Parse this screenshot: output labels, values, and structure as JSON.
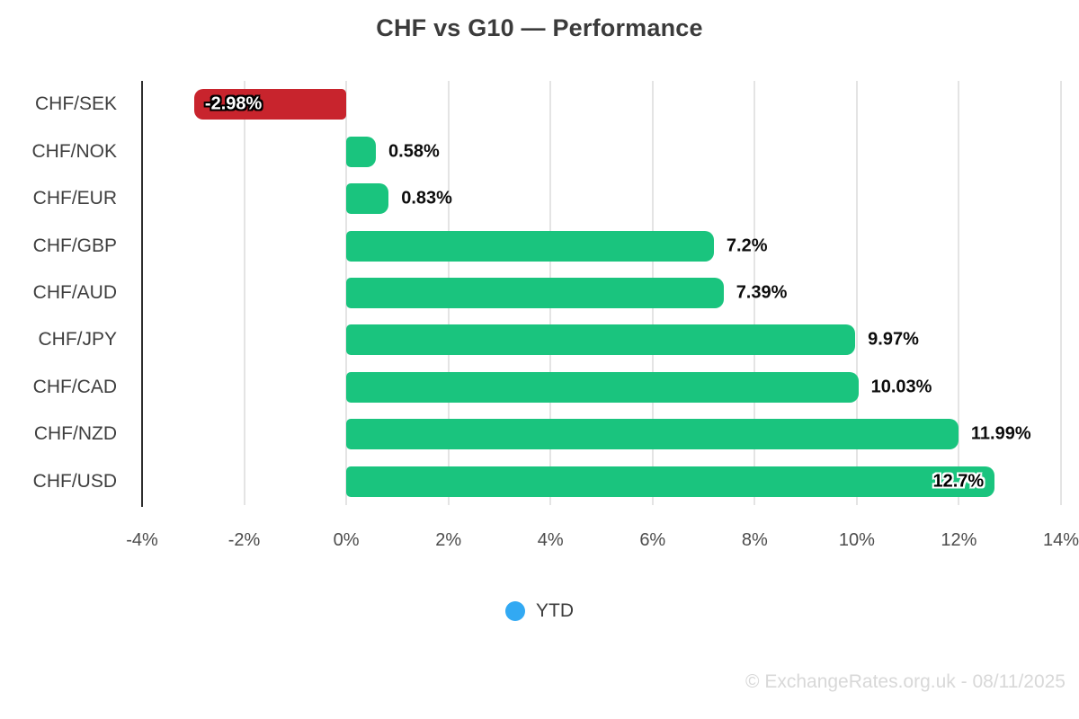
{
  "title": "CHF vs G10 — Performance",
  "legend": {
    "label": "YTD",
    "dot_color": "#32a9f3"
  },
  "watermark": "© ExchangeRates.org.uk - 08/11/2025",
  "colors": {
    "positive_bar": "#1ac47e",
    "negative_bar": "#c8242d",
    "gridline": "#e4e4e4",
    "axis_line": "#2d2d2d"
  },
  "chart_data": {
    "type": "bar",
    "orientation": "horizontal",
    "title": "CHF vs G10 — Performance",
    "categories": [
      "CHF/SEK",
      "CHF/NOK",
      "CHF/EUR",
      "CHF/GBP",
      "CHF/AUD",
      "CHF/JPY",
      "CHF/CAD",
      "CHF/NZD",
      "CHF/USD"
    ],
    "series": [
      {
        "name": "YTD",
        "values": [
          -2.98,
          0.58,
          0.83,
          7.2,
          7.39,
          9.97,
          10.03,
          11.99,
          12.7
        ]
      }
    ],
    "value_labels": [
      "-2.98%",
      "0.58%",
      "0.83%",
      "7.2%",
      "7.39%",
      "9.97%",
      "10.03%",
      "11.99%",
      "12.7%"
    ],
    "label_inside": [
      true,
      false,
      false,
      false,
      false,
      false,
      false,
      false,
      true
    ],
    "xlim": [
      -4,
      14
    ],
    "x_tick_values": [
      -4,
      -2,
      0,
      2,
      4,
      6,
      8,
      10,
      12,
      14
    ],
    "x_ticks": [
      "-4%",
      "-2%",
      "0%",
      "2%",
      "4%",
      "6%",
      "8%",
      "10%",
      "12%",
      "14%"
    ],
    "grid": true,
    "legend_position": "bottom"
  }
}
